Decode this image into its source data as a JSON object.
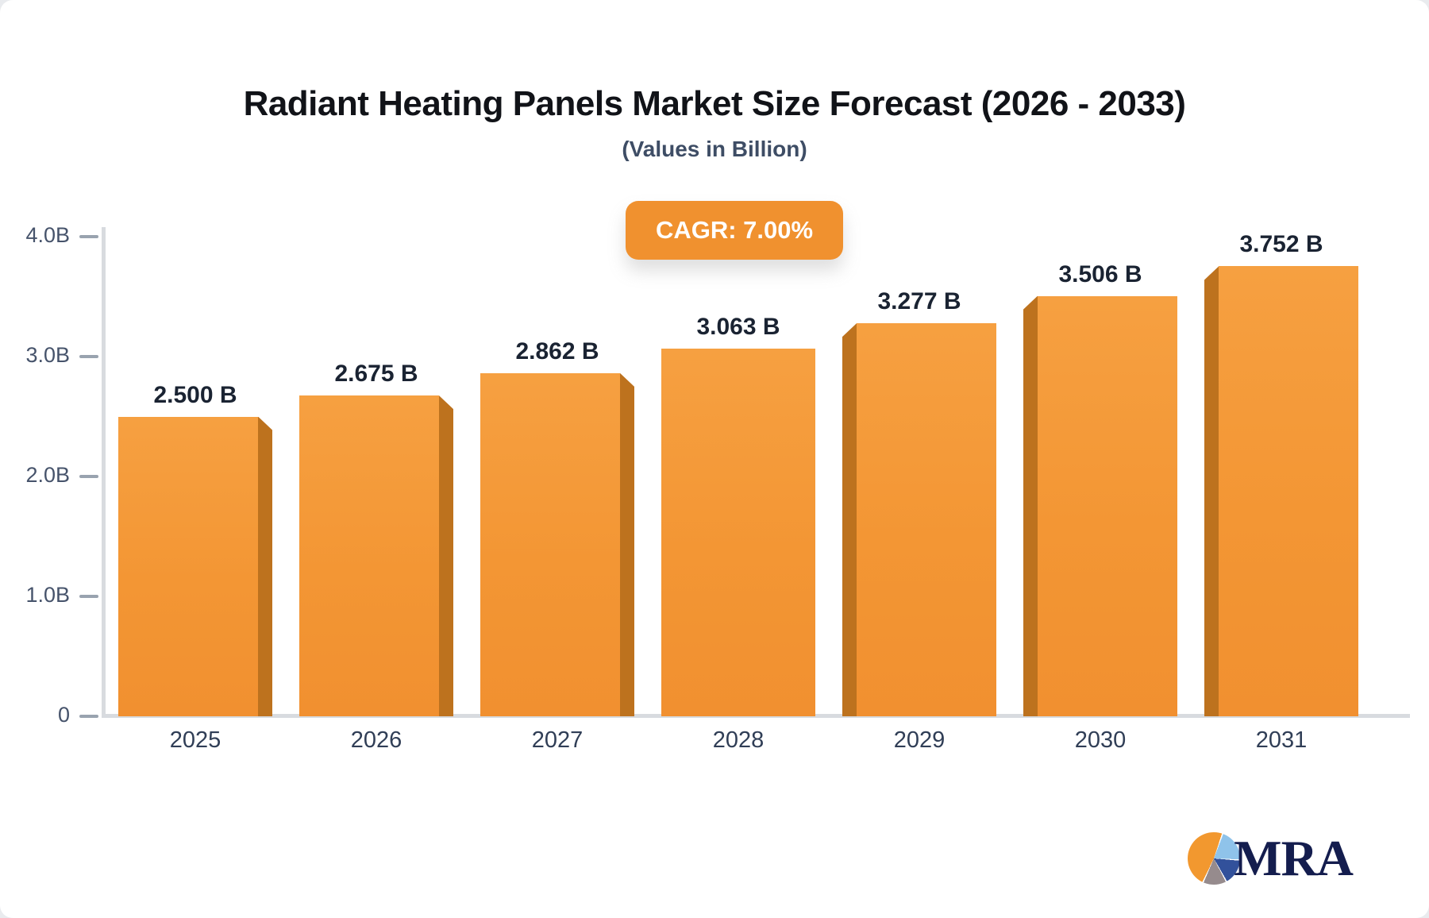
{
  "header": {
    "title": "Radiant Heating Panels Market Size Forecast (2026 - 2033)",
    "subtitle": "(Values in Billion)",
    "cagr_badge": "CAGR: 7.00%"
  },
  "chart_data": {
    "type": "bar",
    "title": "Radiant Heating Panels Market Size Forecast (2026 - 2033)",
    "subtitle": "(Values in Billion)",
    "categories": [
      "2025",
      "2026",
      "2027",
      "2028",
      "2029",
      "2030",
      "2031"
    ],
    "values": [
      2.5,
      2.675,
      2.862,
      3.063,
      3.277,
      3.506,
      3.752
    ],
    "value_labels": [
      "2.500 B",
      "2.675 B",
      "2.862 B",
      "3.063 B",
      "3.277 B",
      "3.506 B",
      "3.752 B"
    ],
    "ylabel": "",
    "xlabel": "",
    "ylim": [
      0,
      4.0
    ],
    "yticks": [
      {
        "label": "4.0B",
        "value": 4.0
      },
      {
        "label": "3.0B",
        "value": 3.0
      },
      {
        "label": "2.0B",
        "value": 2.0
      },
      {
        "label": "1.0B",
        "value": 1.0
      },
      {
        "label": "0",
        "value": 0.0
      }
    ],
    "grid": false,
    "legend": false,
    "annotation": "CAGR: 7.00%",
    "colors": {
      "bar_fill_top": "#f6a041",
      "bar_fill_bottom": "#f19030",
      "bar_side_face": "#bd721e",
      "badge_background": "#f0912f",
      "badge_text": "#ffffff",
      "axis_line": "#d8dbdf",
      "tick_dash": "#99a3af",
      "label_text": "#1a2332"
    }
  },
  "logo": {
    "text": "MRA",
    "icon": "pie-chart-icon"
  }
}
